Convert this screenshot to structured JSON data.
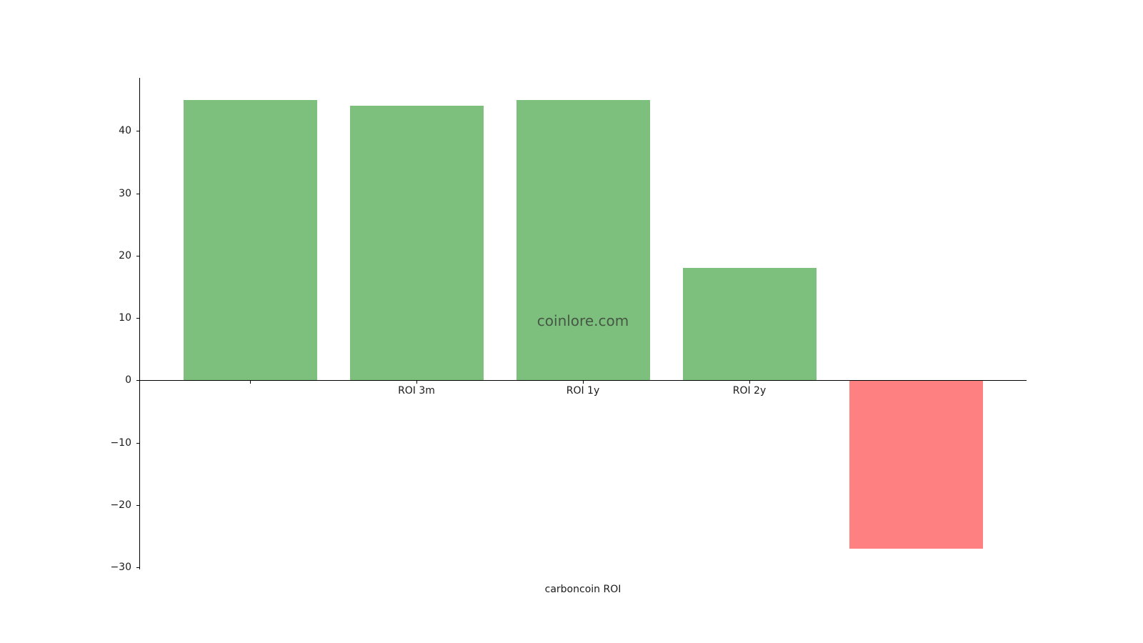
{
  "page": {
    "background_color": "#ffffff"
  },
  "watermark": {
    "text": "coinlore.com",
    "color": "#373a37"
  },
  "chart_data": {
    "type": "bar",
    "title": "",
    "xlabel": "carboncoin ROI",
    "ylabel": "",
    "categories": [
      "",
      "ROI 3m",
      "ROI 1y",
      "ROI 2y",
      ""
    ],
    "values": [
      45,
      44,
      45,
      18,
      -27
    ],
    "bar_colors": [
      "#7DC07D",
      "#7DC07D",
      "#7DC07D",
      "#7DC07D",
      "#FF8080"
    ],
    "positive_color": "#7DC07D",
    "negative_color": "#FF8080",
    "axis_color": "#000000",
    "y_ticks": [
      40,
      30,
      20,
      10,
      0,
      -10,
      -20,
      -30
    ],
    "x_tick_marks": [
      true,
      true,
      true,
      true,
      false
    ],
    "ylim": [
      -30.3,
      48.5
    ],
    "grid": false,
    "legend_position": "none"
  }
}
